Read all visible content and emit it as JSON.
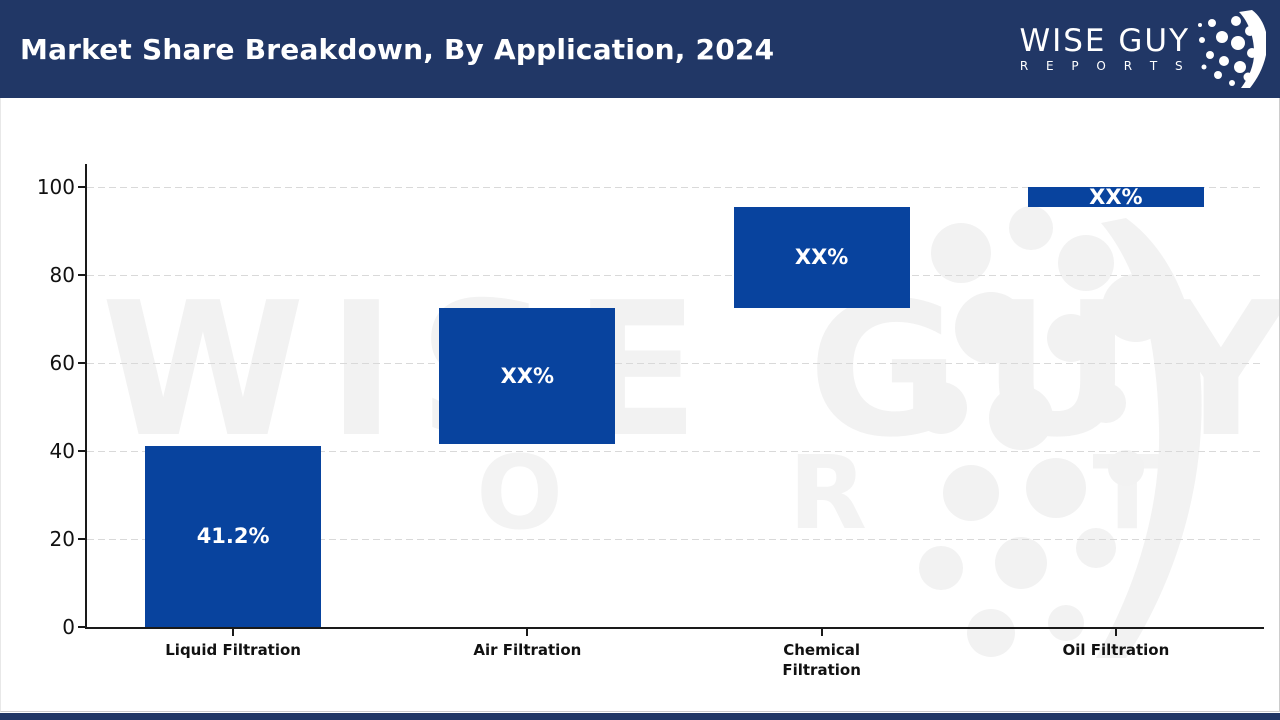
{
  "header": {
    "title": "Market Share Breakdown, By Application, 2024",
    "logo_line1": "WISE GUY",
    "logo_line2": "R E P O R T S"
  },
  "watermark": {
    "line1": "WISE GUY",
    "line2": "P O R T S"
  },
  "colors": {
    "header_navy": "#213766",
    "bar_blue": "#08439e",
    "gridline_gray": "#d9d9d9",
    "bar_label_white": "#ffffff"
  },
  "chart_data": {
    "type": "bar",
    "subtype": "waterfall",
    "title": "Market Share Breakdown, By Application, 2024",
    "xlabel": "",
    "ylabel": "",
    "ylim": [
      0,
      100
    ],
    "yticks": [
      0,
      20,
      40,
      60,
      80,
      100
    ],
    "grid": "horizontal-dashed",
    "legend": "none",
    "categories": [
      "Liquid Filtration",
      "Air Filtration",
      "Chemical Filtration",
      "Oil Filtration"
    ],
    "xtick_labels": [
      "Liquid Filtration",
      "Air Filtration",
      "Chemical\nFiltration",
      "Oil Filtration"
    ],
    "bars": [
      {
        "category": "Liquid Filtration",
        "label": "41.2%",
        "start": 0,
        "end": 41.2
      },
      {
        "category": "Air Filtration",
        "label": "XX%",
        "start": 41.5,
        "end": 72.5
      },
      {
        "category": "Chemical Filtration",
        "label": "XX%",
        "start": 72.5,
        "end": 95.5
      },
      {
        "category": "Oil Filtration",
        "label": "XX%",
        "start": 95.5,
        "end": 100
      }
    ],
    "bar_color": "#08439e",
    "label_color": "#ffffff"
  }
}
